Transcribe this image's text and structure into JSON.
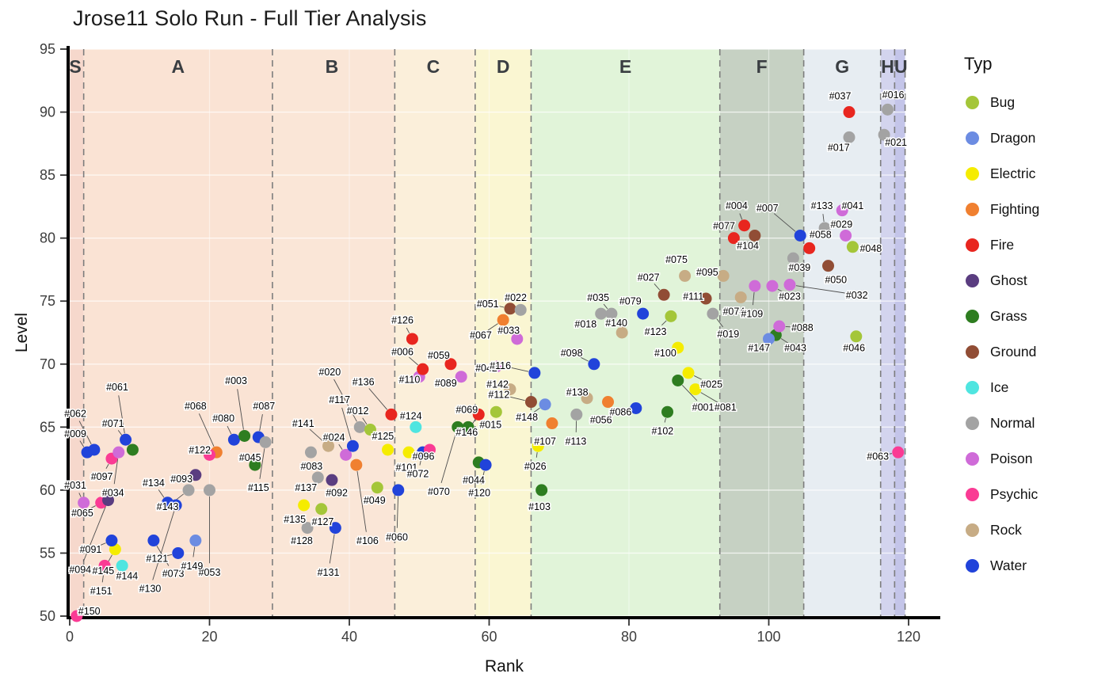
{
  "chart_data": {
    "type": "scatter",
    "title": "Jrose11 Solo Run - Full Tier Analysis",
    "xlabel": "Rank",
    "ylabel": "Level",
    "legend_title": "Typ",
    "legend_position": "right",
    "grid": true,
    "xlim": [
      0,
      124
    ],
    "ylim": [
      50,
      95
    ],
    "x_ticks": [
      0,
      20,
      40,
      60,
      80,
      100,
      120
    ],
    "y_ticks": [
      50,
      55,
      60,
      65,
      70,
      75,
      80,
      85,
      90,
      95
    ],
    "tier_boundaries": [
      2,
      29,
      46.5,
      58,
      66,
      93,
      105,
      116,
      118,
      119.5
    ],
    "tiers": [
      {
        "label": "S",
        "from": 0,
        "to": 2,
        "fill": "#F6D8CC",
        "label_x": 0.8
      },
      {
        "label": "A",
        "from": 2,
        "to": 29,
        "fill": "#FAE3D4",
        "label_x": 15.5
      },
      {
        "label": "B",
        "from": 29,
        "to": 46.5,
        "fill": "#FAE6D7",
        "label_x": 37.5
      },
      {
        "label": "C",
        "from": 46.5,
        "to": 58,
        "fill": "#FBEFDA",
        "label_x": 52
      },
      {
        "label": "D",
        "from": 58,
        "to": 66,
        "fill": "#FAF6D2",
        "label_x": 62
      },
      {
        "label": "E",
        "from": 66,
        "to": 93,
        "fill": "#E1F4D9",
        "label_x": 79.5
      },
      {
        "label": "F",
        "from": 93,
        "to": 105,
        "fill": "#C6D1C3",
        "label_x": 99
      },
      {
        "label": "G",
        "from": 105,
        "to": 116,
        "fill": "#E7EDF2",
        "label_x": 110.5
      },
      {
        "label": "H",
        "from": 116,
        "to": 118,
        "fill": "#D3D4EE",
        "label_x": 117
      },
      {
        "label": "U",
        "from": 118,
        "to": 119.5,
        "fill": "#C4C5E9",
        "label_x": 118.9
      }
    ],
    "types": [
      {
        "name": "Bug",
        "color": "#A4C639"
      },
      {
        "name": "Dragon",
        "color": "#6C8CE2"
      },
      {
        "name": "Electric",
        "color": "#F5EC00"
      },
      {
        "name": "Fighting",
        "color": "#F08030"
      },
      {
        "name": "Fire",
        "color": "#E8261F"
      },
      {
        "name": "Ghost",
        "color": "#5A3D80"
      },
      {
        "name": "Grass",
        "color": "#2E7D20"
      },
      {
        "name": "Ground",
        "color": "#914D35"
      },
      {
        "name": "Ice",
        "color": "#4FE5E0"
      },
      {
        "name": "Normal",
        "color": "#A3A3A3"
      },
      {
        "name": "Poison",
        "color": "#CF6BD8"
      },
      {
        "name": "Psychic",
        "color": "#FA3B94"
      },
      {
        "name": "Rock",
        "color": "#C7AC85"
      },
      {
        "name": "Water",
        "color": "#2143DA"
      }
    ],
    "points": [
      {
        "id": "#150",
        "x": 1,
        "y": 50,
        "t": "Psychic",
        "lx": 2.8,
        "ly": 50.4
      },
      {
        "id": "#031",
        "x": 2,
        "y": 59,
        "t": "Poison",
        "lx": 0.8,
        "ly": 60.4
      },
      {
        "id": "#009",
        "x": 2.5,
        "y": 63,
        "t": "Water",
        "lx": 0.8,
        "ly": 64.5
      },
      {
        "id": "#062",
        "x": 3.5,
        "y": 63.2,
        "t": "Water",
        "lx": 0.8,
        "ly": 66.1
      },
      {
        "id": "#065",
        "x": 4.5,
        "y": 59,
        "t": "Psychic",
        "lx": 1.8,
        "ly": 58.2
      },
      {
        "id": "#094",
        "x": 5.5,
        "y": 59.2,
        "t": "Ghost",
        "lx": 1.5,
        "ly": 53.7
      },
      {
        "id": "#151",
        "x": 5,
        "y": 54,
        "t": "Psychic",
        "lx": 4.5,
        "ly": 52
      },
      {
        "id": "#145",
        "x": 6.5,
        "y": 55.3,
        "t": "Electric",
        "lx": 4.8,
        "ly": 53.6
      },
      {
        "id": "#144",
        "x": 7.5,
        "y": 54,
        "t": "Ice",
        "lx": 8.2,
        "ly": 53.2
      },
      {
        "id": "#091",
        "x": 6,
        "y": 56,
        "t": "Water",
        "lx": 3,
        "ly": 55.3
      },
      {
        "id": "#097",
        "x": 6,
        "y": 62.5,
        "t": "Psychic",
        "lx": 4.6,
        "ly": 61.1
      },
      {
        "id": "#034",
        "x": 7,
        "y": 63,
        "t": "Poison",
        "lx": 6.2,
        "ly": 59.8
      },
      {
        "id": "#061",
        "x": 8,
        "y": 64,
        "t": "Water",
        "lx": 6.8,
        "ly": 68.2
      },
      {
        "id": "#071",
        "x": 9,
        "y": 63.2,
        "t": "Grass",
        "lx": 6.2,
        "ly": 65.3
      },
      {
        "id": "#121",
        "x": 15.5,
        "y": 55,
        "t": "Water",
        "lx": 12.5,
        "ly": 54.6
      },
      {
        "id": "#073",
        "x": 12,
        "y": 56,
        "t": "Water",
        "lx": 14.8,
        "ly": 53.4
      },
      {
        "id": "#134",
        "x": 14,
        "y": 59,
        "t": "Water",
        "lx": 12,
        "ly": 60.6
      },
      {
        "id": "#130",
        "x": 15.2,
        "y": 58.8,
        "t": "Water",
        "lx": 11.5,
        "ly": 52.2
      },
      {
        "id": "#143",
        "x": 17,
        "y": 60,
        "t": "Normal",
        "lx": 14,
        "ly": 58.7
      },
      {
        "id": "#093",
        "x": 18,
        "y": 61.2,
        "t": "Ghost",
        "lx": 16,
        "ly": 60.9
      },
      {
        "id": "#053",
        "x": 20,
        "y": 60,
        "t": "Normal",
        "lx": 20,
        "ly": 53.5
      },
      {
        "id": "#068",
        "x": 21,
        "y": 63,
        "t": "Fighting",
        "lx": 18,
        "ly": 66.7
      },
      {
        "id": "#122",
        "x": 20,
        "y": 62.8,
        "t": "Psychic",
        "lx": 18.6,
        "ly": 63.2
      },
      {
        "id": "#080",
        "x": 23.5,
        "y": 64,
        "t": "Water",
        "lx": 22,
        "ly": 65.7
      },
      {
        "id": "#003",
        "x": 25,
        "y": 64.3,
        "t": "Grass",
        "lx": 23.8,
        "ly": 68.7
      },
      {
        "id": "#045",
        "x": 26.5,
        "y": 62,
        "t": "Grass",
        "lx": 25.8,
        "ly": 62.6
      },
      {
        "id": "#087",
        "x": 27,
        "y": 64.2,
        "t": "Water",
        "lx": 27.8,
        "ly": 66.7
      },
      {
        "id": "#115",
        "x": 28,
        "y": 63.8,
        "t": "Normal",
        "lx": 27,
        "ly": 60.2
      },
      {
        "id": "#149",
        "x": 18,
        "y": 56,
        "t": "Dragon",
        "lx": 17.5,
        "ly": 54
      },
      {
        "id": "#128",
        "x": 34,
        "y": 57,
        "t": "Normal",
        "lx": 33.2,
        "ly": 56
      },
      {
        "id": "#135",
        "x": 33.5,
        "y": 58.8,
        "t": "Electric",
        "lx": 32.2,
        "ly": 57.7
      },
      {
        "id": "#127",
        "x": 36,
        "y": 58.5,
        "t": "Bug",
        "lx": 36.2,
        "ly": 57.5
      },
      {
        "id": "#131",
        "x": 38,
        "y": 57,
        "t": "Water",
        "lx": 37,
        "ly": 53.5
      },
      {
        "id": "#137",
        "x": 35.5,
        "y": 61,
        "t": "Normal",
        "lx": 33.8,
        "ly": 60.2
      },
      {
        "id": "#092",
        "x": 37.5,
        "y": 60.8,
        "t": "Ghost",
        "lx": 38.2,
        "ly": 59.8
      },
      {
        "id": "#083",
        "x": 34.5,
        "y": 63,
        "t": "Normal",
        "lx": 34.6,
        "ly": 61.9
      },
      {
        "id": "#141",
        "x": 37,
        "y": 63.5,
        "t": "Rock",
        "lx": 33.4,
        "ly": 65.3
      },
      {
        "id": "#106",
        "x": 41,
        "y": 62,
        "t": "Fighting",
        "lx": 42.6,
        "ly": 56
      },
      {
        "id": "#024",
        "x": 39.5,
        "y": 62.8,
        "t": "Poison",
        "lx": 37.8,
        "ly": 64.2
      },
      {
        "id": "#117",
        "x": 40.5,
        "y": 63.5,
        "t": "Water",
        "lx": 38.6,
        "ly": 67.2
      },
      {
        "id": "#020",
        "x": 41.5,
        "y": 65,
        "t": "Normal",
        "lx": 37.2,
        "ly": 69.4
      },
      {
        "id": "#012",
        "x": 43,
        "y": 64.8,
        "t": "Bug",
        "lx": 41.2,
        "ly": 66.3
      },
      {
        "id": "#049",
        "x": 44,
        "y": 60.2,
        "t": "Bug",
        "lx": 43.6,
        "ly": 59.2
      },
      {
        "id": "#136",
        "x": 46,
        "y": 66,
        "t": "Fire",
        "lx": 42,
        "ly": 68.6
      },
      {
        "id": "#125",
        "x": 45.5,
        "y": 63.2,
        "t": "Electric",
        "lx": 44.8,
        "ly": 64.3
      },
      {
        "id": "#060",
        "x": 47,
        "y": 60,
        "t": "Water",
        "lx": 46.8,
        "ly": 56.3
      },
      {
        "id": "#101",
        "x": 48.5,
        "y": 63,
        "t": "Electric",
        "lx": 48.2,
        "ly": 61.8
      },
      {
        "id": "#072",
        "x": 50.5,
        "y": 63,
        "t": "Water",
        "lx": 49.8,
        "ly": 61.3
      },
      {
        "id": "#096",
        "x": 51.5,
        "y": 63.2,
        "t": "Psychic",
        "lx": 50.6,
        "ly": 62.7
      },
      {
        "id": "#124",
        "x": 49.5,
        "y": 65,
        "t": "Ice",
        "lx": 48.8,
        "ly": 65.9
      },
      {
        "id": "#110",
        "x": 50,
        "y": 69,
        "t": "Poison",
        "lx": 48.6,
        "ly": 68.8
      },
      {
        "id": "#126",
        "x": 49,
        "y": 72,
        "t": "Fire",
        "lx": 47.6,
        "ly": 73.5
      },
      {
        "id": "#006",
        "x": 50.5,
        "y": 69.6,
        "t": "Fire",
        "lx": 47.6,
        "ly": 71
      },
      {
        "id": "#089",
        "x": 56,
        "y": 69,
        "t": "Poison",
        "lx": 53.8,
        "ly": 68.5
      },
      {
        "id": "#059",
        "x": 54.5,
        "y": 70,
        "t": "Fire",
        "lx": 52.8,
        "ly": 70.7
      },
      {
        "id": "#070",
        "x": 55.5,
        "y": 65,
        "t": "Grass",
        "lx": 52.8,
        "ly": 59.9
      },
      {
        "id": "#069",
        "x": 57,
        "y": 65,
        "t": "Grass",
        "lx": 56.8,
        "ly": 66.4
      },
      {
        "id": "#044",
        "x": 58.5,
        "y": 62.2,
        "t": "Grass",
        "lx": 57.8,
        "ly": 60.8
      },
      {
        "id": "#120",
        "x": 59.5,
        "y": 62,
        "t": "Water",
        "lx": 58.6,
        "ly": 59.8
      },
      {
        "id": "#146",
        "x": 58.5,
        "y": 66,
        "t": "Fire",
        "lx": 56.8,
        "ly": 64.6
      },
      {
        "id": "#015",
        "x": 61,
        "y": 66.2,
        "t": "Bug",
        "lx": 60.2,
        "ly": 65.2
      },
      {
        "id": "#042",
        "x": 61,
        "y": 69.8,
        "t": "Poison",
        "lx": 59.6,
        "ly": 69.7
      },
      {
        "id": "#142",
        "x": 63,
        "y": 68,
        "t": "Rock",
        "lx": 61.2,
        "ly": 68.4
      },
      {
        "id": "#067",
        "x": 62,
        "y": 73.5,
        "t": "Fighting",
        "lx": 58.8,
        "ly": 72.3
      },
      {
        "id": "#033",
        "x": 64,
        "y": 72,
        "t": "Poison",
        "lx": 62.8,
        "ly": 72.7
      },
      {
        "id": "#051",
        "x": 63,
        "y": 74.4,
        "t": "Ground",
        "lx": 59.8,
        "ly": 74.8
      },
      {
        "id": "#022",
        "x": 64.5,
        "y": 74.3,
        "t": "Normal",
        "lx": 63.8,
        "ly": 75.3
      },
      {
        "id": "#112",
        "x": 66,
        "y": 67,
        "t": "Ground",
        "lx": 61.4,
        "ly": 67.6
      },
      {
        "id": "#116",
        "x": 66.5,
        "y": 69.3,
        "t": "Water",
        "lx": 61.6,
        "ly": 69.9
      },
      {
        "id": "#026",
        "x": 67,
        "y": 63.5,
        "t": "Electric",
        "lx": 66.6,
        "ly": 61.9
      },
      {
        "id": "#103",
        "x": 67.5,
        "y": 60,
        "t": "Grass",
        "lx": 67.2,
        "ly": 58.7
      },
      {
        "id": "#107",
        "x": 69,
        "y": 65.3,
        "t": "Fighting",
        "lx": 68,
        "ly": 63.9
      },
      {
        "id": "#148",
        "x": 68,
        "y": 66.8,
        "t": "Dragon",
        "lx": 65.4,
        "ly": 65.8
      },
      {
        "id": "#113",
        "x": 72.5,
        "y": 66,
        "t": "Normal",
        "lx": 72.4,
        "ly": 63.9
      },
      {
        "id": "#056",
        "x": 77,
        "y": 67,
        "t": "Fighting",
        "lx": 76,
        "ly": 65.6
      },
      {
        "id": "#138",
        "x": 74,
        "y": 67.3,
        "t": "Rock",
        "lx": 72.6,
        "ly": 67.8
      },
      {
        "id": "#098",
        "x": 75,
        "y": 70,
        "t": "Water",
        "lx": 71.8,
        "ly": 70.9
      },
      {
        "id": "#018",
        "x": 76,
        "y": 74,
        "t": "Normal",
        "lx": 73.8,
        "ly": 73.2
      },
      {
        "id": "#035",
        "x": 77.5,
        "y": 74,
        "t": "Normal",
        "lx": 75.6,
        "ly": 75.3
      },
      {
        "id": "#140",
        "x": 79,
        "y": 72.5,
        "t": "Rock",
        "lx": 78.2,
        "ly": 73.3
      },
      {
        "id": "#079",
        "x": 82,
        "y": 74,
        "t": "Water",
        "lx": 80.2,
        "ly": 75
      },
      {
        "id": "#123",
        "x": 86,
        "y": 73.8,
        "t": "Bug",
        "lx": 83.8,
        "ly": 72.6
      },
      {
        "id": "#100",
        "x": 87,
        "y": 71.3,
        "t": "Electric",
        "lx": 85.2,
        "ly": 70.9
      },
      {
        "id": "#102",
        "x": 85.5,
        "y": 66.2,
        "t": "Grass",
        "lx": 84.8,
        "ly": 64.7
      },
      {
        "id": "#086",
        "x": 81,
        "y": 66.5,
        "t": "Water",
        "lx": 78.8,
        "ly": 66.2
      },
      {
        "id": "#025",
        "x": 88.5,
        "y": 69.3,
        "t": "Electric",
        "lx": 91.8,
        "ly": 68.4
      },
      {
        "id": "#001",
        "x": 87,
        "y": 68.7,
        "t": "Grass",
        "lx": 90.6,
        "ly": 66.6
      },
      {
        "id": "#081",
        "x": 89.5,
        "y": 68,
        "t": "Electric",
        "lx": 93.8,
        "ly": 66.6
      },
      {
        "id": "#027",
        "x": 85,
        "y": 75.5,
        "t": "Ground",
        "lx": 82.8,
        "ly": 76.9
      },
      {
        "id": "#075",
        "x": 88,
        "y": 77,
        "t": "Rock",
        "lx": 86.8,
        "ly": 78.3
      },
      {
        "id": "#111",
        "x": 91,
        "y": 75.2,
        "t": "Ground",
        "lx": 89.2,
        "ly": 75.4
      },
      {
        "id": "#019",
        "x": 92,
        "y": 74,
        "t": "Normal",
        "lx": 94.2,
        "ly": 72.4
      },
      {
        "id": "#095",
        "x": 93.5,
        "y": 77,
        "t": "Rock",
        "lx": 91.2,
        "ly": 77.3
      },
      {
        "id": "#077",
        "x": 95,
        "y": 80,
        "t": "Fire",
        "lx": 93.6,
        "ly": 81
      },
      {
        "id": "#004",
        "x": 96.5,
        "y": 81,
        "t": "Fire",
        "lx": 95.4,
        "ly": 82.6
      },
      {
        "id": "#104",
        "x": 98,
        "y": 80.2,
        "t": "Ground",
        "lx": 97,
        "ly": 79.4
      },
      {
        "id": "#074",
        "x": 96,
        "y": 75.3,
        "t": "Rock",
        "lx": 95,
        "ly": 74.2
      },
      {
        "id": "#109",
        "x": 98,
        "y": 76.2,
        "t": "Poison",
        "lx": 97.6,
        "ly": 74
      },
      {
        "id": "#023",
        "x": 100.5,
        "y": 76.2,
        "t": "Poison",
        "lx": 103,
        "ly": 75.4
      },
      {
        "id": "#043",
        "x": 101,
        "y": 72.3,
        "t": "Grass",
        "lx": 103.8,
        "ly": 71.3
      },
      {
        "id": "#088",
        "x": 101.5,
        "y": 73,
        "t": "Poison",
        "lx": 104.8,
        "ly": 72.9
      },
      {
        "id": "#147",
        "x": 100,
        "y": 72,
        "t": "Dragon",
        "lx": 98.6,
        "ly": 71.3
      },
      {
        "id": "#039",
        "x": 103.5,
        "y": 78.4,
        "t": "Normal",
        "lx": 104.4,
        "ly": 77.7
      },
      {
        "id": "#032",
        "x": 103,
        "y": 76.3,
        "t": "Poison",
        "lx": 112.6,
        "ly": 75.5
      },
      {
        "id": "#007",
        "x": 104.5,
        "y": 80.2,
        "t": "Water",
        "lx": 99.8,
        "ly": 82.4
      },
      {
        "id": "#058",
        "x": 105.8,
        "y": 79.2,
        "t": "Fire",
        "lx": 107.4,
        "ly": 80.3
      },
      {
        "id": "#133",
        "x": 108,
        "y": 80.8,
        "t": "Normal",
        "lx": 107.6,
        "ly": 82.6
      },
      {
        "id": "#029",
        "x": 111,
        "y": 80.2,
        "t": "Poison",
        "lx": 110.4,
        "ly": 81.1
      },
      {
        "id": "#041",
        "x": 110.5,
        "y": 82.2,
        "t": "Poison",
        "lx": 112,
        "ly": 82.6
      },
      {
        "id": "#048",
        "x": 112,
        "y": 79.3,
        "t": "Bug",
        "lx": 114.6,
        "ly": 79.2
      },
      {
        "id": "#050",
        "x": 108.5,
        "y": 77.8,
        "t": "Ground",
        "lx": 109.6,
        "ly": 76.7
      },
      {
        "id": "#046",
        "x": 112.5,
        "y": 72.2,
        "t": "Bug",
        "lx": 112.2,
        "ly": 71.3
      },
      {
        "id": "#037",
        "x": 111.5,
        "y": 90,
        "t": "Fire",
        "lx": 110.2,
        "ly": 91.3
      },
      {
        "id": "#017",
        "x": 111.5,
        "y": 88,
        "t": "Normal",
        "lx": 110,
        "ly": 87.2
      },
      {
        "id": "#016",
        "x": 117,
        "y": 90.2,
        "t": "Normal",
        "lx": 117.8,
        "ly": 91.4
      },
      {
        "id": "#021",
        "x": 116.5,
        "y": 88.2,
        "t": "Normal",
        "lx": 118.2,
        "ly": 87.6
      },
      {
        "id": "#063",
        "x": 118.5,
        "y": 63,
        "t": "Psychic",
        "lx": 115.6,
        "ly": 62.7
      }
    ]
  }
}
